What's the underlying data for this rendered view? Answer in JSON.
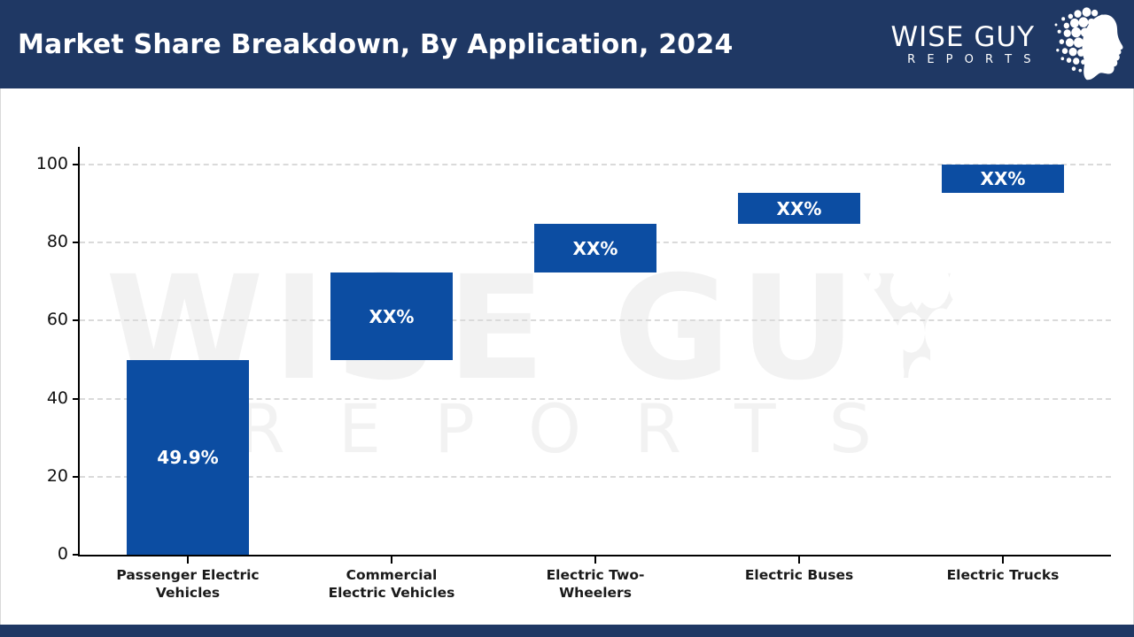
{
  "header": {
    "title": "Market Share Breakdown, By Application, 2024",
    "bg_color": "#1F3864",
    "logo": {
      "line1": "WISE GUY",
      "line2": "R E P O R T S"
    }
  },
  "watermark": {
    "line1": "WISE GUY",
    "line2": "R E P O R T S"
  },
  "footer": {
    "bg_color": "#1F3864"
  },
  "chart_data": {
    "type": "bar",
    "subtype": "waterfall-floating-segments",
    "title": "Market Share Breakdown, By Application, 2024",
    "categories": [
      "Passenger Electric\nVehicles",
      "Commercial\nElectric Vehicles",
      "Electric Two-\nWheelers",
      "Electric Buses",
      "Electric Trucks"
    ],
    "segments": [
      {
        "label": "49.9%",
        "start": 0,
        "end": 49.9
      },
      {
        "label": "XX%",
        "start": 49.9,
        "end": 72.3
      },
      {
        "label": "XX%",
        "start": 72.3,
        "end": 84.8
      },
      {
        "label": "XX%",
        "start": 84.8,
        "end": 92.7
      },
      {
        "label": "XX%",
        "start": 92.7,
        "end": 100
      }
    ],
    "ylim": [
      0,
      100
    ],
    "yticks": [
      0,
      20,
      40,
      60,
      80,
      100
    ],
    "xlabel": "",
    "ylabel": "",
    "grid": "horizontal-dashed",
    "legend": "none",
    "bar_color": "#0C4DA2",
    "bar_label_color": "#ffffff",
    "axis_color": "#000000",
    "grid_color": "#DADADA"
  }
}
